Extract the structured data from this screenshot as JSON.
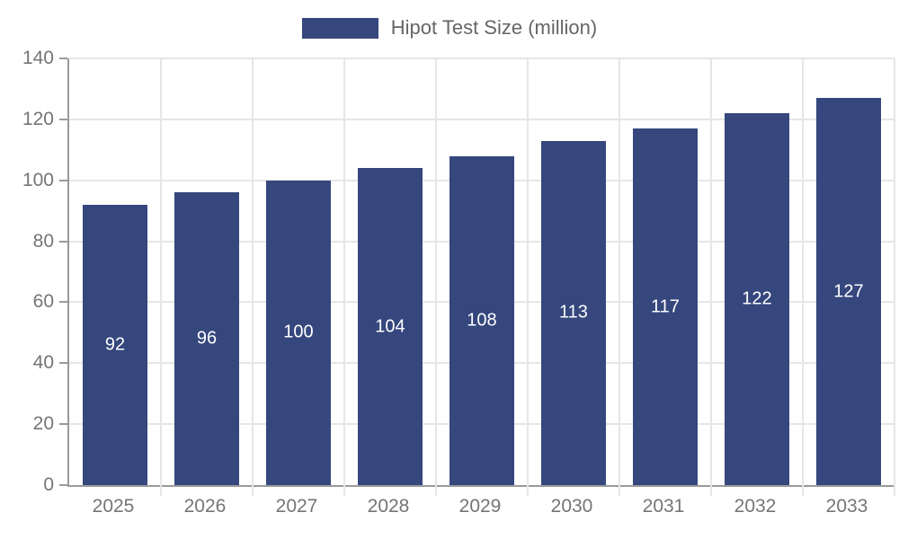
{
  "chart_data": {
    "type": "bar",
    "title": "",
    "legend_label": "Hipot Test Size (million)",
    "legend_position": "top",
    "categories": [
      "2025",
      "2026",
      "2027",
      "2028",
      "2029",
      "2030",
      "2031",
      "2032",
      "2033"
    ],
    "values": [
      92,
      96,
      100,
      104,
      108,
      113,
      117,
      122,
      127
    ],
    "xlabel": "",
    "ylabel": "",
    "ylim": [
      0,
      140
    ],
    "ytick_step": 20,
    "grid": true
  },
  "colors": {
    "bar": "#35477d",
    "grid": "#e6e6e6",
    "axis": "#9a9a9a",
    "tick_label": "#757575",
    "legend_text": "#666666",
    "value_label": "#ffffff",
    "background": "#ffffff"
  }
}
